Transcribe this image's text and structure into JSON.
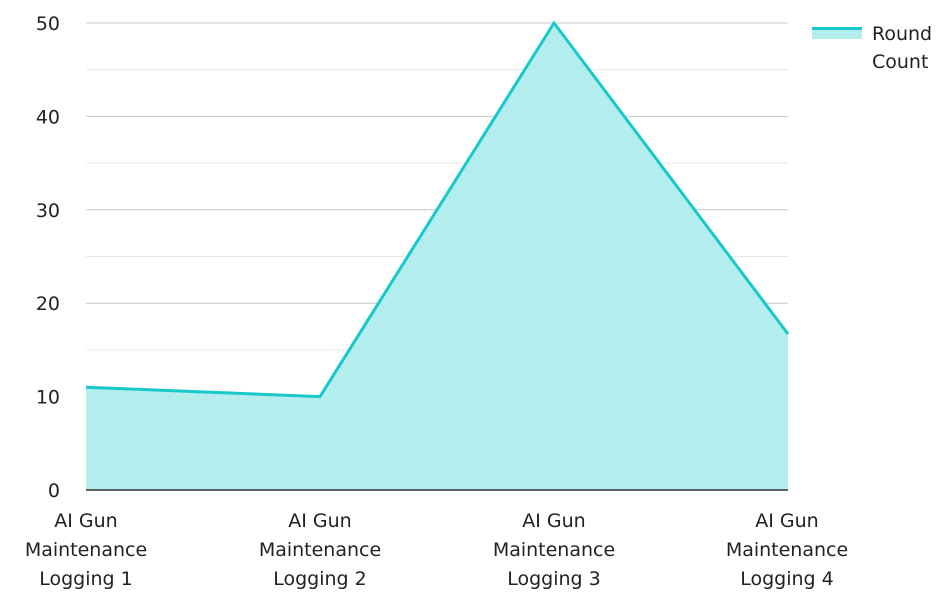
{
  "chart_data": {
    "type": "area",
    "categories": [
      [
        "AI Gun",
        "Maintenance",
        "Logging 1"
      ],
      [
        "AI Gun",
        "Maintenance",
        "Logging 2"
      ],
      [
        "AI Gun",
        "Maintenance",
        "Logging 3"
      ],
      [
        "AI Gun",
        "Maintenance",
        "Logging 4"
      ]
    ],
    "series": [
      {
        "name": "Round Count",
        "values": [
          11,
          10,
          50,
          16.7
        ]
      }
    ],
    "ylim": [
      0,
      50
    ],
    "yticks": [
      0,
      10,
      20,
      30,
      40,
      50
    ],
    "grid": true,
    "legend_position": "top-right",
    "colors": {
      "line": "#19c8c8",
      "fill": "#b3eded",
      "grid_major": "#c8c8c8",
      "grid_minor": "#e6e6e6",
      "axis": "#333333"
    }
  }
}
